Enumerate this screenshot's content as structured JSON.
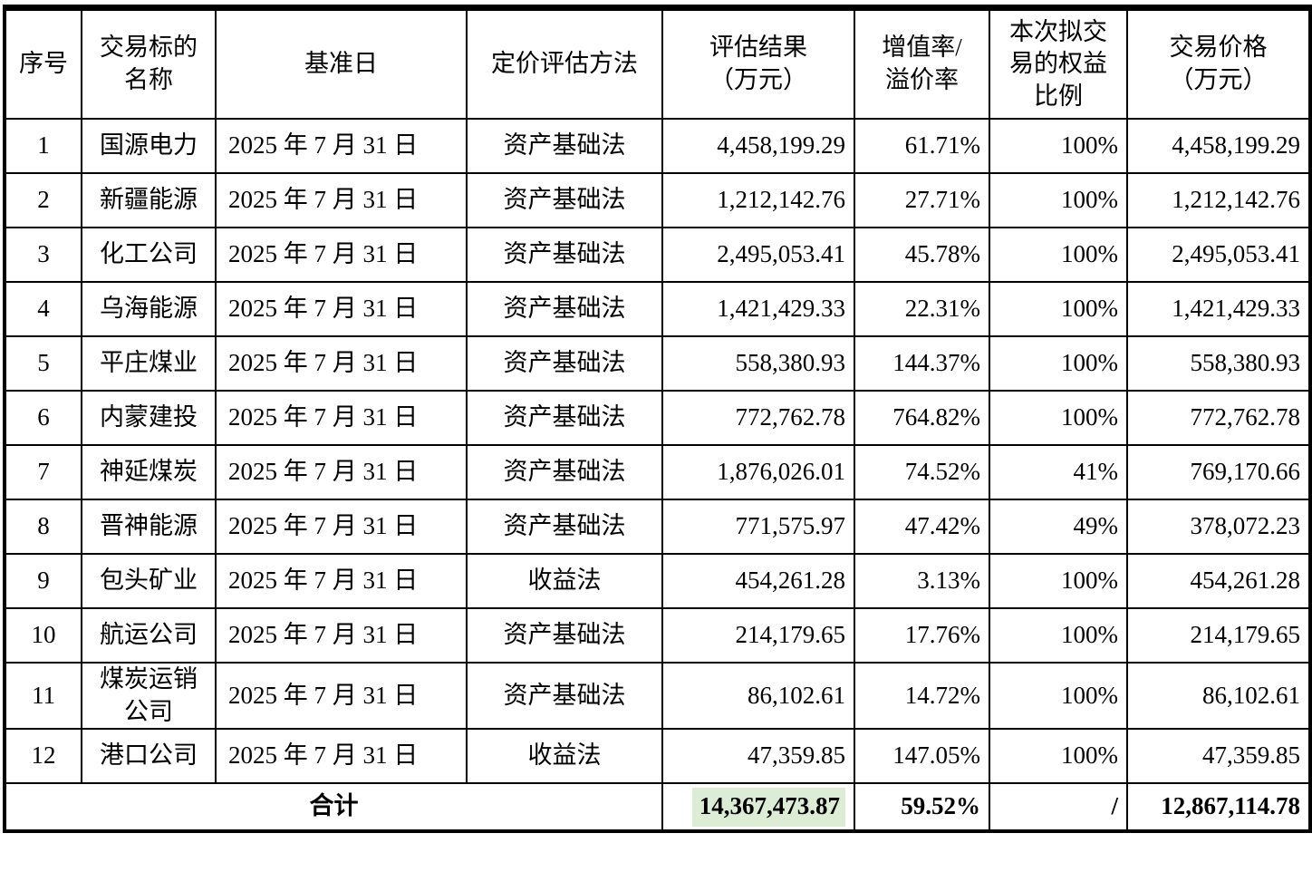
{
  "table": {
    "columns": [
      {
        "id": "index",
        "label": "序号"
      },
      {
        "id": "name",
        "label": "交易标的\n名称"
      },
      {
        "id": "base_date",
        "label": "基准日"
      },
      {
        "id": "method",
        "label": "定价评估方法"
      },
      {
        "id": "appraisal",
        "label": "评估结果\n（万元）"
      },
      {
        "id": "premium",
        "label": "增值率/\n溢价率"
      },
      {
        "id": "equity",
        "label": "本次拟交\n易的权益\n比例"
      },
      {
        "id": "price",
        "label": "交易价格\n（万元）"
      }
    ],
    "rows": [
      {
        "index": "1",
        "name": "国源电力",
        "base_date": "2025 年 7 月 31 日",
        "method": "资产基础法",
        "appraisal": "4,458,199.29",
        "premium": "61.71%",
        "equity": "100%",
        "price": "4,458,199.29"
      },
      {
        "index": "2",
        "name": "新疆能源",
        "base_date": "2025 年 7 月 31 日",
        "method": "资产基础法",
        "appraisal": "1,212,142.76",
        "premium": "27.71%",
        "equity": "100%",
        "price": "1,212,142.76"
      },
      {
        "index": "3",
        "name": "化工公司",
        "base_date": "2025 年 7 月 31 日",
        "method": "资产基础法",
        "appraisal": "2,495,053.41",
        "premium": "45.78%",
        "equity": "100%",
        "price": "2,495,053.41"
      },
      {
        "index": "4",
        "name": "乌海能源",
        "base_date": "2025 年 7 月 31 日",
        "method": "资产基础法",
        "appraisal": "1,421,429.33",
        "premium": "22.31%",
        "equity": "100%",
        "price": "1,421,429.33"
      },
      {
        "index": "5",
        "name": "平庄煤业",
        "base_date": "2025 年 7 月 31 日",
        "method": "资产基础法",
        "appraisal": "558,380.93",
        "premium": "144.37%",
        "equity": "100%",
        "price": "558,380.93"
      },
      {
        "index": "6",
        "name": "内蒙建投",
        "base_date": "2025 年 7 月 31 日",
        "method": "资产基础法",
        "appraisal": "772,762.78",
        "premium": "764.82%",
        "equity": "100%",
        "price": "772,762.78"
      },
      {
        "index": "7",
        "name": "神延煤炭",
        "base_date": "2025 年 7 月 31 日",
        "method": "资产基础法",
        "appraisal": "1,876,026.01",
        "premium": "74.52%",
        "equity": "41%",
        "price": "769,170.66"
      },
      {
        "index": "8",
        "name": "晋神能源",
        "base_date": "2025 年 7 月 31 日",
        "method": "资产基础法",
        "appraisal": "771,575.97",
        "premium": "47.42%",
        "equity": "49%",
        "price": "378,072.23"
      },
      {
        "index": "9",
        "name": "包头矿业",
        "base_date": "2025 年 7 月 31 日",
        "method": "收益法",
        "appraisal": "454,261.28",
        "premium": "3.13%",
        "equity": "100%",
        "price": "454,261.28"
      },
      {
        "index": "10",
        "name": "航运公司",
        "base_date": "2025 年 7 月 31 日",
        "method": "资产基础法",
        "appraisal": "214,179.65",
        "premium": "17.76%",
        "equity": "100%",
        "price": "214,179.65"
      },
      {
        "index": "11",
        "name": "煤炭运销\n公司",
        "base_date": "2025 年 7 月 31 日",
        "method": "资产基础法",
        "appraisal": "86,102.61",
        "premium": "14.72%",
        "equity": "100%",
        "price": "86,102.61"
      },
      {
        "index": "12",
        "name": "港口公司",
        "base_date": "2025 年 7 月 31 日",
        "method": "收益法",
        "appraisal": "47,359.85",
        "premium": "147.05%",
        "equity": "100%",
        "price": "47,359.85"
      }
    ],
    "total_row": {
      "label": "合计",
      "appraisal": "14,367,473.87",
      "premium": "59.52%",
      "equity": "/",
      "price": "12,867,114.78"
    },
    "highlight_color": "#dcecd5",
    "text_color": "#000000",
    "border_color": "#000000"
  }
}
